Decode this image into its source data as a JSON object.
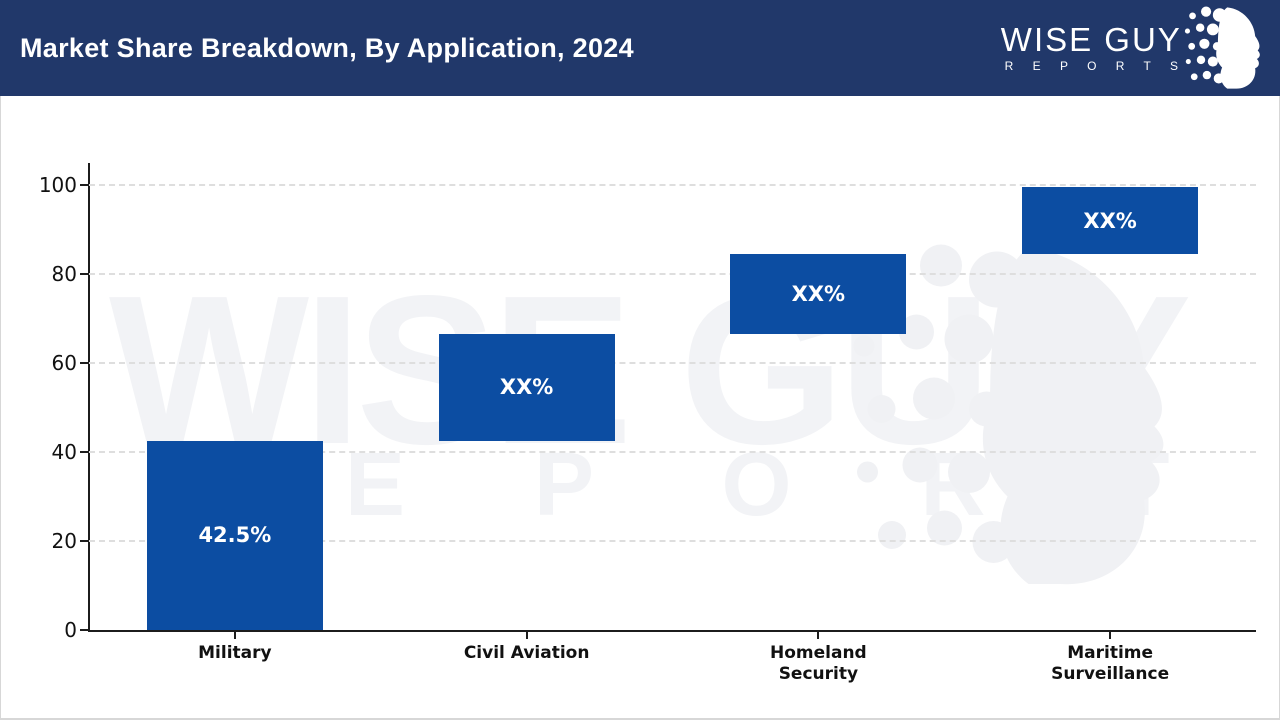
{
  "header": {
    "title": "Market Share Breakdown, By Application, 2024",
    "logo": {
      "wordmark": "WISE GUY",
      "subtext": "R E P O R T S"
    }
  },
  "watermark": {
    "wordmark": "WISE GU·Y",
    "subtext": "R E P O R T S",
    "head_icon": "head-profile-dots"
  },
  "colors": {
    "header_bg": "#21386a",
    "bar_fill": "#0c4da2",
    "bar_label_text": "#ffffff",
    "title_text": "#ffffff",
    "axis": "#1c1c1c",
    "gridline": "#dedede",
    "tick_label": "#111111",
    "watermark": "#f2f3f6",
    "content_border": "#d7d7d7"
  },
  "chart_data": {
    "type": "bar",
    "subtype": "floating-waterfall",
    "title": "Market Share Breakdown, By Application, 2024",
    "categories": [
      "Military",
      "Civil Aviation",
      "Homeland Security",
      "Maritime Surveillance"
    ],
    "series": [
      {
        "name": "Market share (%)",
        "segments": [
          {
            "category": "Military",
            "start": 0,
            "end": 42.5,
            "label": "42.5%"
          },
          {
            "category": "Civil Aviation",
            "start": 42.5,
            "end": 66.5,
            "label": "XX%"
          },
          {
            "category": "Homeland Security",
            "start": 66.5,
            "end": 84.5,
            "label": "XX%"
          },
          {
            "category": "Maritime Surveillance",
            "start": 84.5,
            "end": 99.5,
            "label": "XX%"
          }
        ]
      }
    ],
    "xlabel": "",
    "ylabel": "",
    "ylim": [
      0,
      100
    ],
    "yticks": [
      0,
      20,
      40,
      60,
      80,
      100
    ],
    "grid": "horizontal-dashed",
    "legend": "none"
  }
}
